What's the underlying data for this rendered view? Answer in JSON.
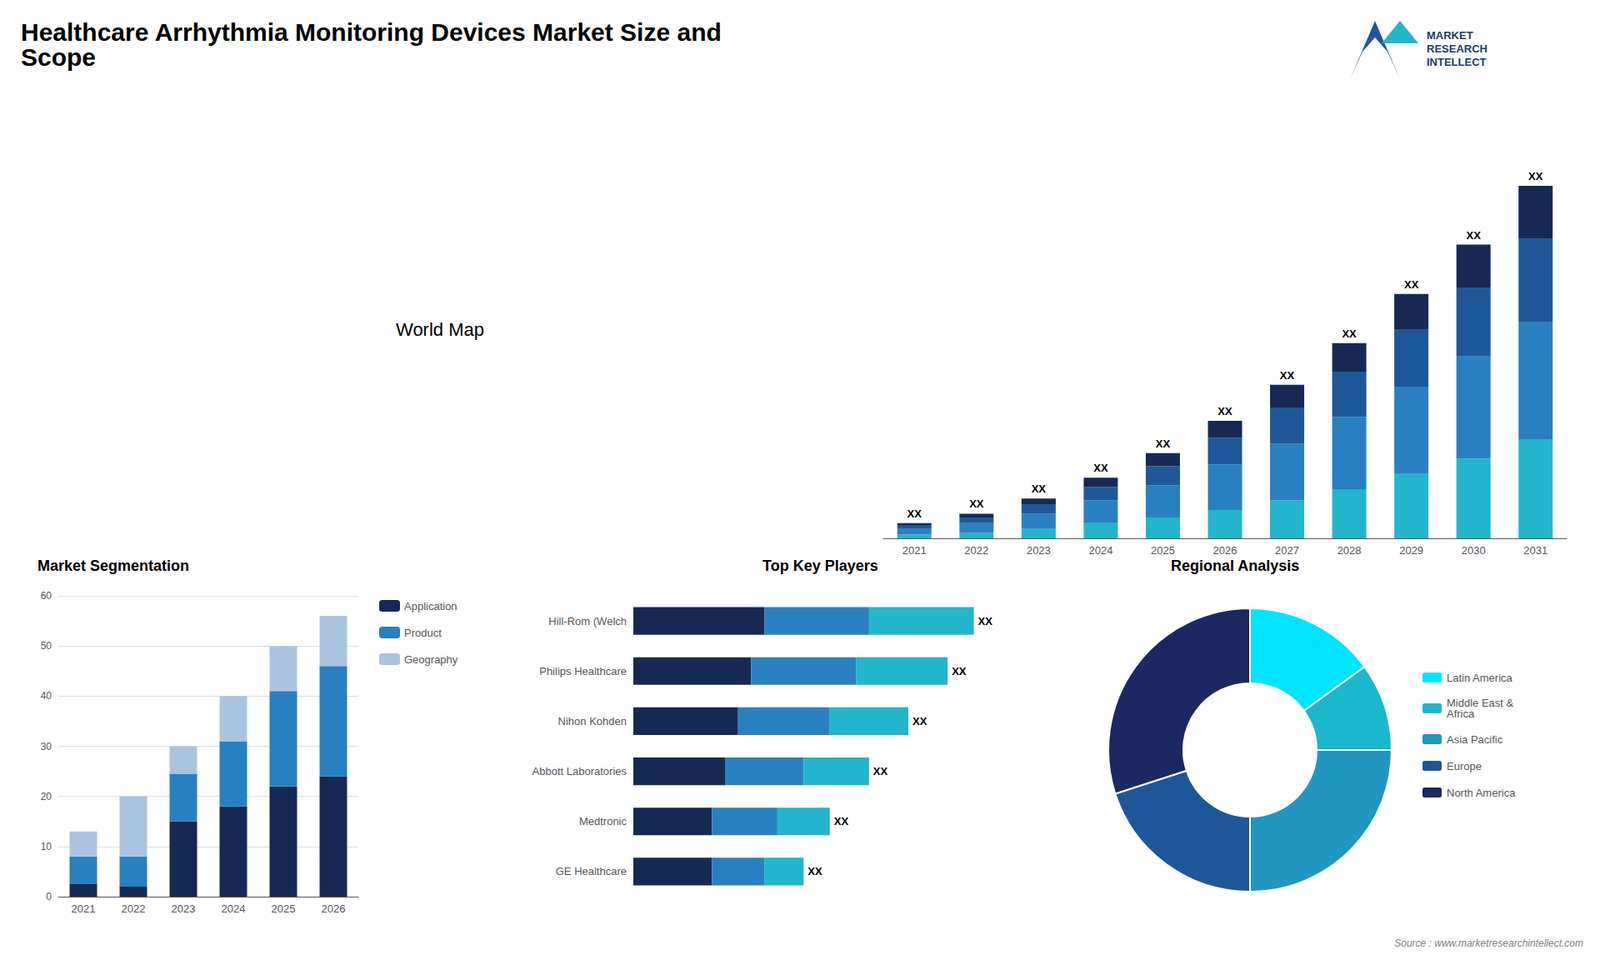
{
  "chart_data": [
    {
      "type": "bar",
      "title": "Healthcare Arrhythmia Monitoring Devices Market Size and\nScope",
      "annotations": [
        "World Map",
        "MARKET\nRESEARCH\nINTELLECT",
        "Source : www.marketresearchintellect.com"
      ],
      "stacked": true,
      "categories": [
        "2021",
        "2022",
        "2023",
        "2024",
        "2025",
        "2026",
        "2027",
        "2028",
        "2029",
        "2030",
        "2031"
      ],
      "series": [
        {
          "color": "#22b5cc",
          "values": [
            1.0,
            1.5,
            2.5,
            4.0,
            5.5,
            7.5,
            10.0,
            13.0,
            17.0,
            21.0,
            26.0
          ]
        },
        {
          "color": "#2980c0",
          "values": [
            1.5,
            2.5,
            4.0,
            6.0,
            8.5,
            12.0,
            15.0,
            19.0,
            23.0,
            27.0,
            31.0
          ]
        },
        {
          "color": "#1e5799",
          "values": [
            1.0,
            1.5,
            2.5,
            3.5,
            5.0,
            7.0,
            9.5,
            12.0,
            15.0,
            18.0,
            22.0
          ]
        },
        {
          "color": "#162955",
          "values": [
            0.5,
            1.0,
            1.5,
            2.5,
            3.5,
            4.5,
            6.0,
            7.5,
            9.5,
            11.5,
            14.0
          ],
          "value_labels": [
            "XX",
            "XX",
            "XX",
            "XX",
            "XX",
            "XX",
            "XX",
            "XX",
            "XX",
            "XX",
            "XX"
          ]
        }
      ],
      "ylim": [
        0,
        113.46
      ],
      "tick_labels": "x",
      "grid": false
    },
    {
      "type": "bar",
      "title": "Market Segmentation",
      "stacked": true,
      "categories": [
        "2021",
        "2022",
        "2023",
        "2024",
        "2025",
        "2026"
      ],
      "series": [
        {
          "name": "Application",
          "color": "#162955",
          "values": [
            2.5,
            2.0,
            15.0,
            18.0,
            22.0,
            24.0
          ]
        },
        {
          "name": "Product",
          "color": "#2980c0",
          "values": [
            5.5,
            6.0,
            9.5,
            13.0,
            19.0,
            22.0
          ]
        },
        {
          "name": "Geography",
          "color": "#aac4e0",
          "values": [
            5.0,
            12.0,
            5.5,
            9.0,
            9.0,
            10.0
          ]
        }
      ],
      "ylim": [
        0,
        60
      ],
      "yticks": [
        0,
        10,
        20,
        30,
        40,
        50,
        60
      ],
      "grid": true,
      "legend": "right"
    },
    {
      "type": "bar",
      "title": "Top Key Players",
      "orientation": "horizontal",
      "stacked": true,
      "categories": [
        "Hill-Rom (Welch",
        "Philips Healthcare",
        "Nihon Kohden",
        "Abbott Laboratories",
        "Medtronic",
        "GE Healthcare"
      ],
      "series": [
        {
          "color": "#162955",
          "values": [
            5.0,
            4.5,
            4.0,
            3.5,
            3.0,
            3.0
          ]
        },
        {
          "color": "#2980c0",
          "values": [
            4.0,
            4.0,
            3.5,
            3.0,
            2.5,
            2.0
          ]
        },
        {
          "color": "#22b5cc",
          "values": [
            4.0,
            3.5,
            3.0,
            2.5,
            2.0,
            1.5
          ],
          "value_labels": [
            "XX",
            "XX",
            "XX",
            "XX",
            "XX",
            "XX"
          ]
        }
      ],
      "xlim": [
        0,
        14
      ],
      "tick_labels": "y",
      "grid": false
    },
    {
      "type": "donut",
      "title": "Regional Analysis",
      "categories": [
        "Latin America",
        "Middle East &\nAfrica",
        "Asia Pacific",
        "Europe",
        "North America"
      ],
      "values": [
        15,
        10,
        25,
        20,
        30
      ],
      "colors": [
        "#00e5ff",
        "#1ab8cc",
        "#2196c0",
        "#1e5799",
        "#1a2864"
      ],
      "legend": "right"
    }
  ]
}
